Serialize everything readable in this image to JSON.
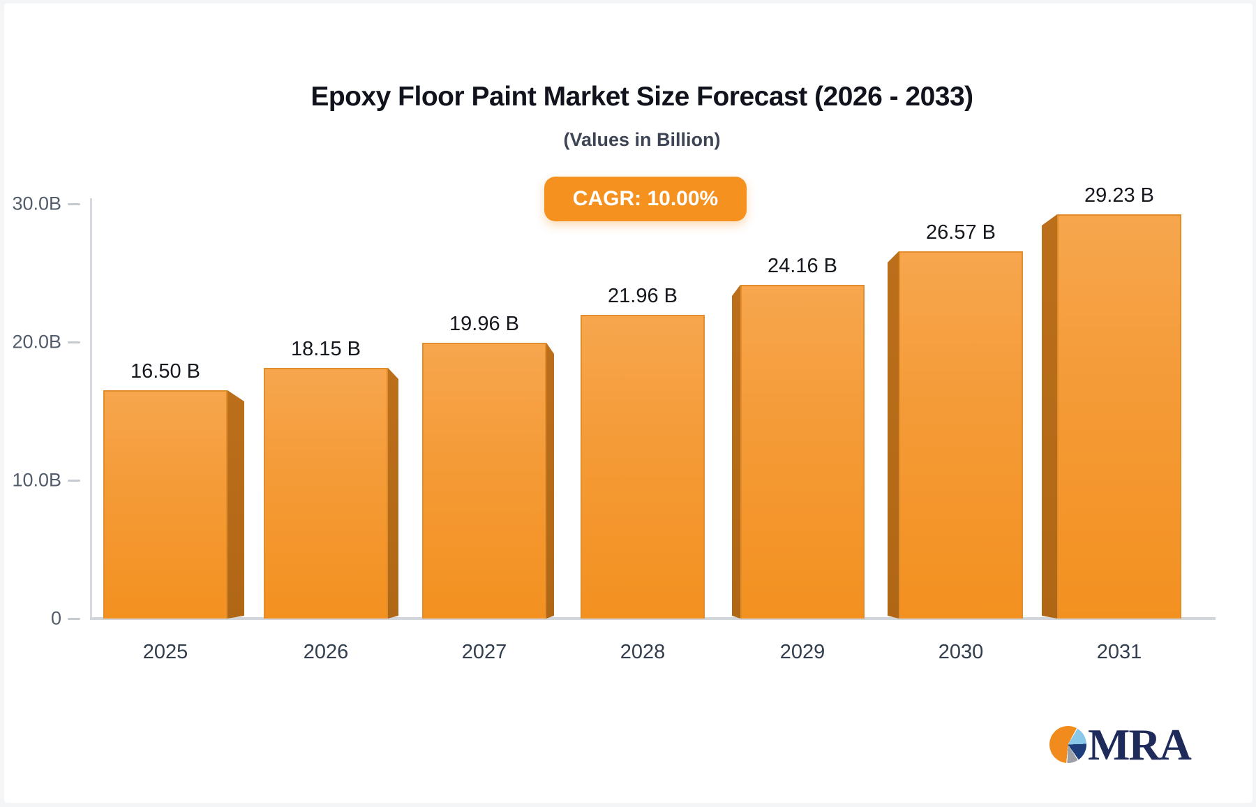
{
  "header": {
    "title": "Epoxy Floor Paint Market Size Forecast (2026 - 2033)",
    "subtitle": "(Values in Billion)"
  },
  "badge": {
    "label": "CAGR: 10.00%",
    "background": "#F5911F",
    "text_color": "#FFFFFF"
  },
  "chart_data": {
    "type": "bar",
    "categories": [
      "2025",
      "2026",
      "2027",
      "2028",
      "2029",
      "2030",
      "2031"
    ],
    "values": [
      16.5,
      18.15,
      19.96,
      21.96,
      24.16,
      26.57,
      29.23
    ],
    "value_labels": [
      "16.50 B",
      "18.15 B",
      "19.96 B",
      "21.96 B",
      "24.16 B",
      "26.57 B",
      "29.23 B"
    ],
    "y_ticks": [
      {
        "label": "30.0B",
        "value": 30
      },
      {
        "label": "20.0B",
        "value": 20
      },
      {
        "label": "10.0B",
        "value": 10
      },
      {
        "label": "0",
        "value": 0
      }
    ],
    "ylim": [
      0,
      30
    ],
    "xlabel": "",
    "ylabel": "",
    "grid": false,
    "legend": false,
    "bar_colors": {
      "face_top": "#F7A64E",
      "face_bottom": "#F39120",
      "side": "#B86E1C",
      "border": "#E18D2B"
    }
  },
  "logo": {
    "text": "MRA",
    "text_color": "#1E2A5A",
    "pie_colors": {
      "orange": "#F28B1D",
      "light_blue": "#8AC8EA",
      "navy": "#1D3E7A",
      "gray": "#9C9FA6"
    }
  }
}
